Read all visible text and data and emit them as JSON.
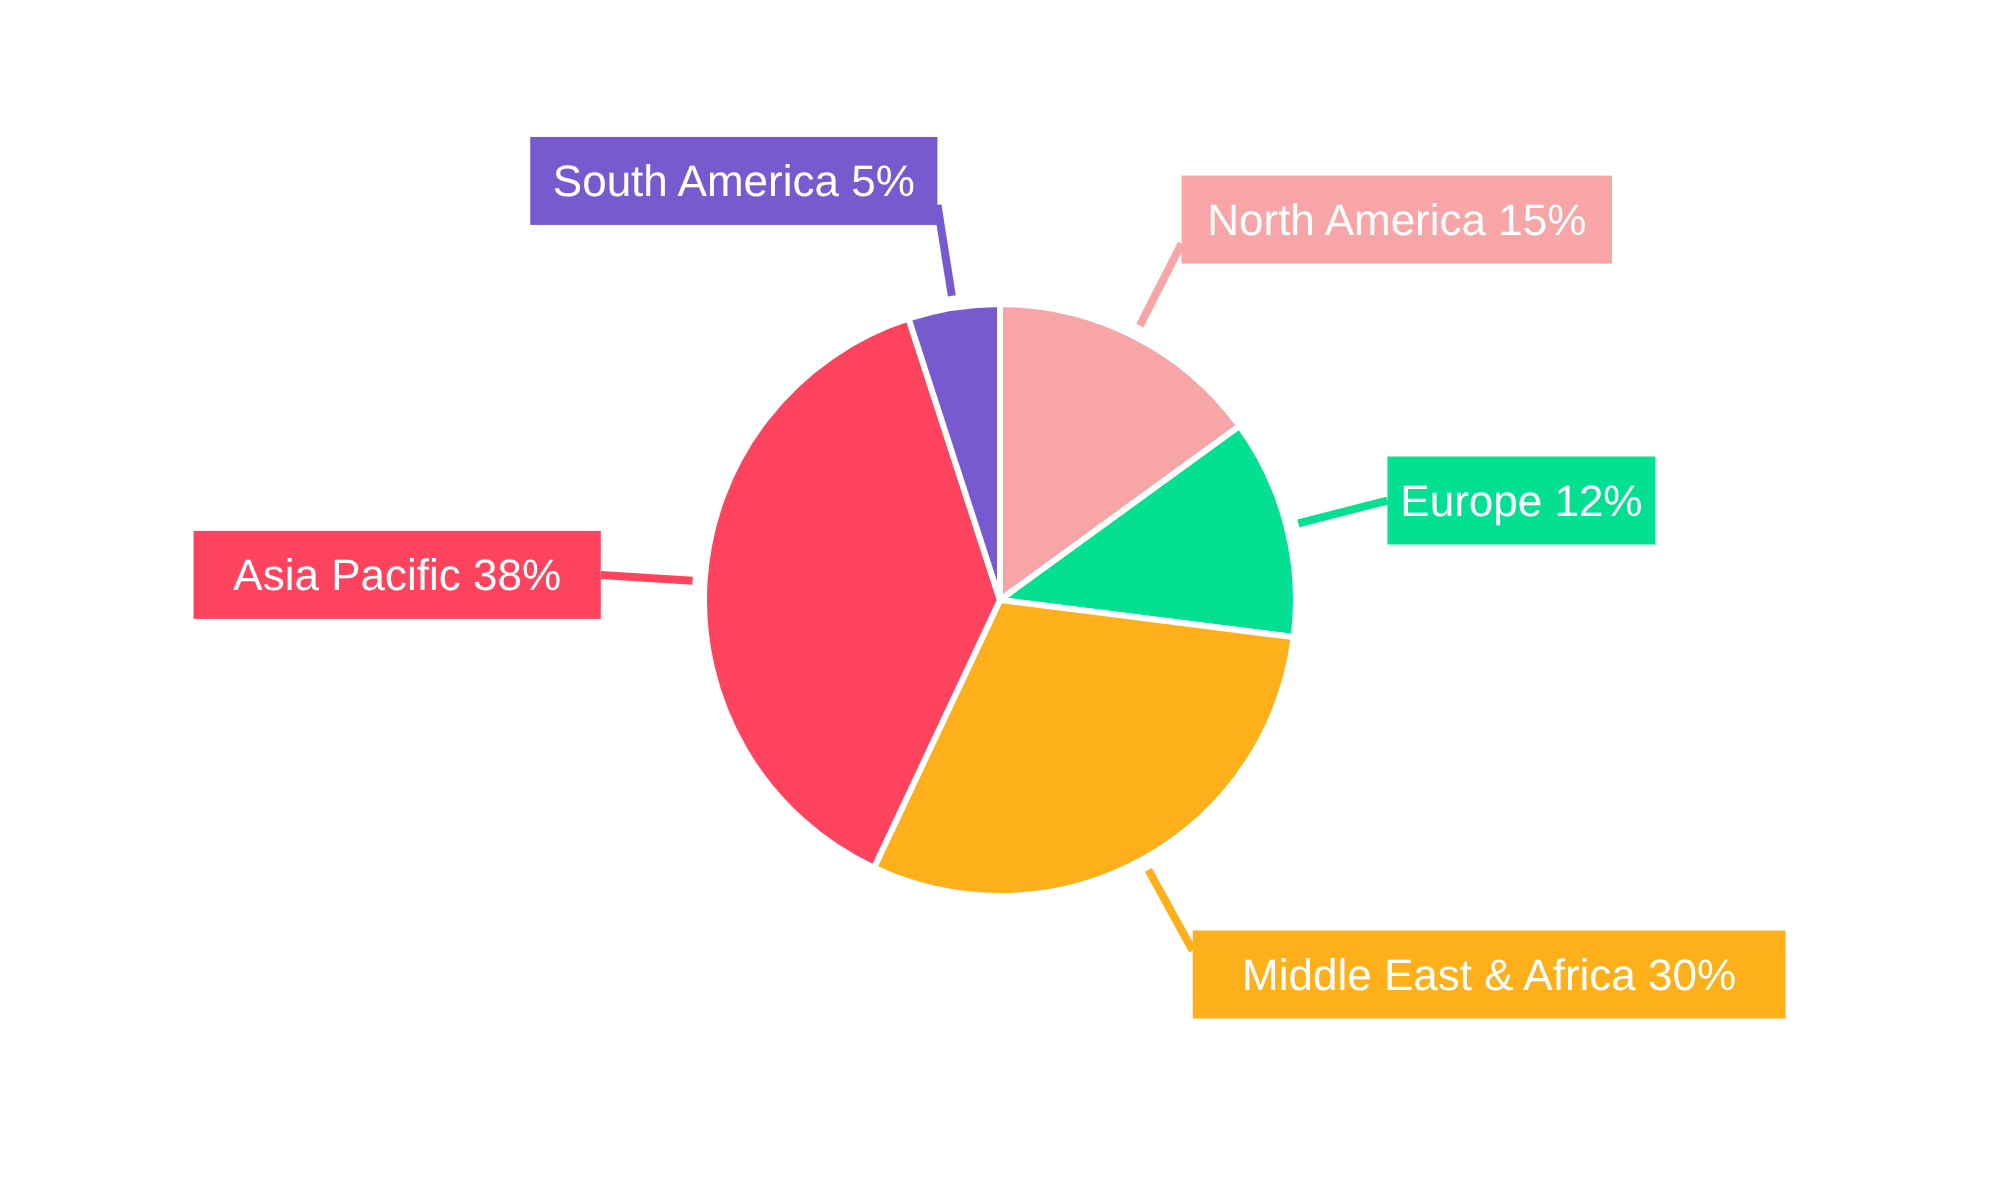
{
  "chart_data": {
    "type": "pie",
    "categories": [
      "North America",
      "Europe",
      "Middle East & Africa",
      "Asia Pacific",
      "South America"
    ],
    "values": [
      15,
      12,
      30,
      38,
      5
    ],
    "value_labels": [
      "15%",
      "12%",
      "30%",
      "38%",
      "5%"
    ],
    "colors": [
      "#f8a5a7",
      "#03e092",
      "#fdb019",
      "#fd435e",
      "#775bce"
    ]
  }
}
